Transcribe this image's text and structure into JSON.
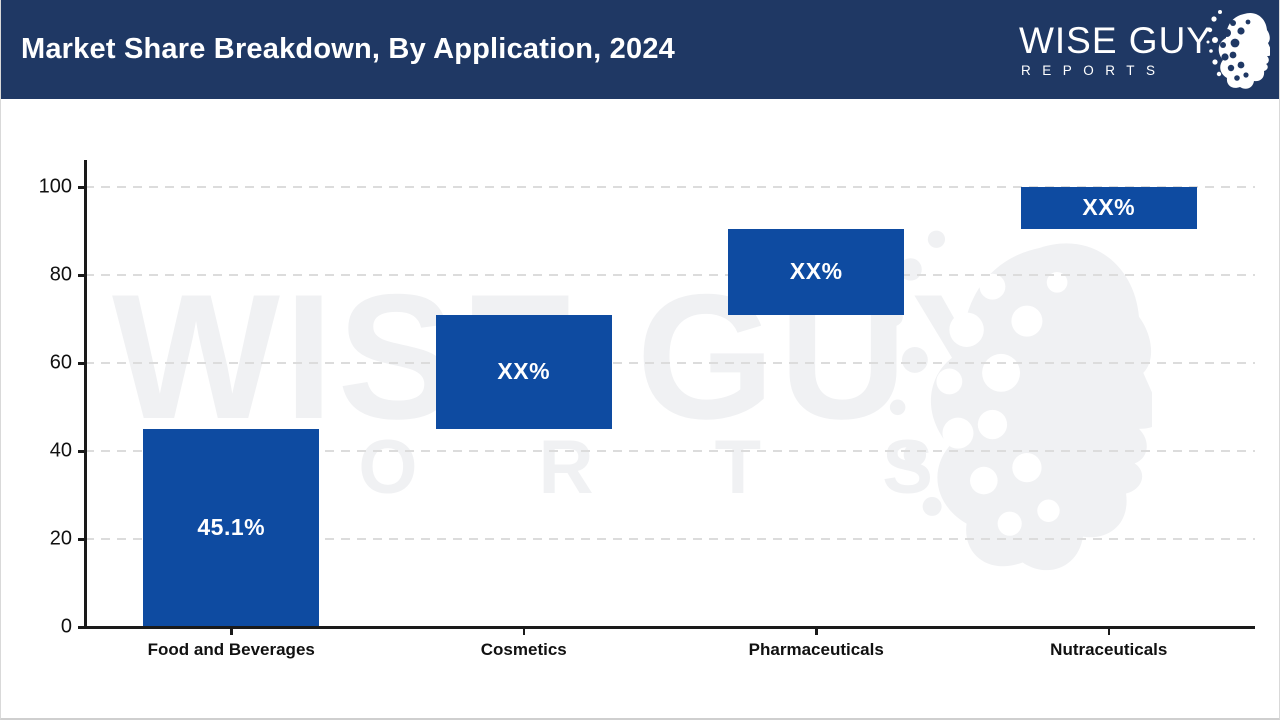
{
  "header": {
    "title": "Market Share Breakdown, By Application, 2024",
    "logo": {
      "line1": "WISE GUY",
      "line2": "REPORTS"
    }
  },
  "watermark": {
    "line1": "WISE GUY",
    "line2": "P O R T S"
  },
  "chart_data": {
    "type": "bar",
    "subtype": "waterfall",
    "title": "Market Share Breakdown, By Application, 2024",
    "categories": [
      "Food and Beverages",
      "Cosmetics",
      "Pharmaceuticals",
      "Nutraceuticals"
    ],
    "segments": [
      {
        "category": "Food and Beverages",
        "start": 0,
        "end": 45.1,
        "label": "45.1%"
      },
      {
        "category": "Cosmetics",
        "start": 45.1,
        "end": 71.0,
        "label": "XX%"
      },
      {
        "category": "Pharmaceuticals",
        "start": 71.0,
        "end": 90.5,
        "label": "XX%"
      },
      {
        "category": "Nutraceuticals",
        "start": 90.5,
        "end": 100.0,
        "label": "XX%"
      }
    ],
    "yticks": [
      0,
      20,
      40,
      60,
      80,
      100
    ],
    "ylim": [
      0,
      106
    ],
    "xlabel": "",
    "ylabel": "",
    "grid": "horizontal-dashed",
    "legend": "none",
    "colors": {
      "bar": "#0e4ba1",
      "header_bg": "#1f3864",
      "grid": "#dcdcdc",
      "axis": "#1a1a1a",
      "bar_label": "#ffffff",
      "watermark": "#f0f1f3"
    }
  }
}
